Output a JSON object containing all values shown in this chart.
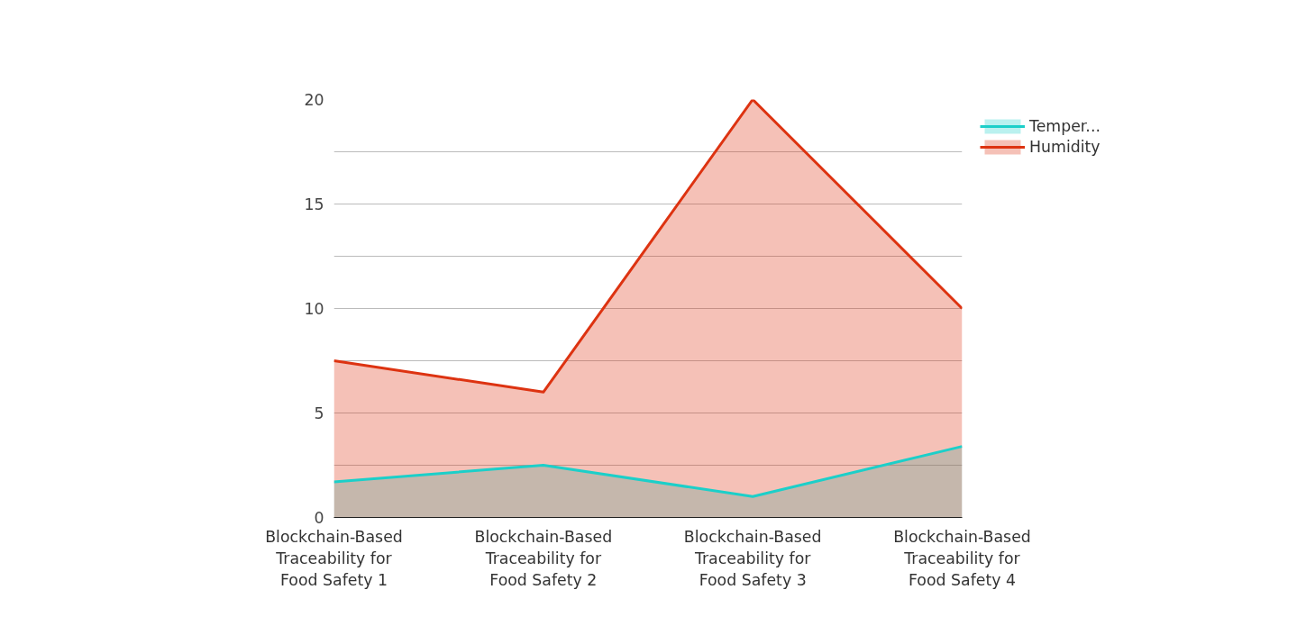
{
  "chart_data": {
    "type": "area",
    "categories": [
      "Blockchain-Based Traceability for Food Safety 1",
      "Blockchain-Based Traceability for Food Safety 2",
      "Blockchain-Based Traceability for Food Safety 3",
      "Blockchain-Based Traceability for Food Safety 4"
    ],
    "series": [
      {
        "name": "Temper...",
        "color": "#1ccfc9",
        "values": [
          1.7,
          2.5,
          1.0,
          3.4
        ]
      },
      {
        "name": "Humidity",
        "color": "#dd3311",
        "values": [
          7.5,
          6,
          20,
          10
        ]
      }
    ],
    "ylim": [
      0,
      20
    ],
    "yticks": [
      0,
      {
        "value": 2.5,
        "label": null
      },
      5,
      {
        "value": 7.5,
        "label": null
      },
      10,
      {
        "value": 12.5,
        "label": null
      },
      15,
      {
        "value": 17.5,
        "label": null
      },
      20
    ],
    "grid": "y",
    "legend": "top right"
  }
}
